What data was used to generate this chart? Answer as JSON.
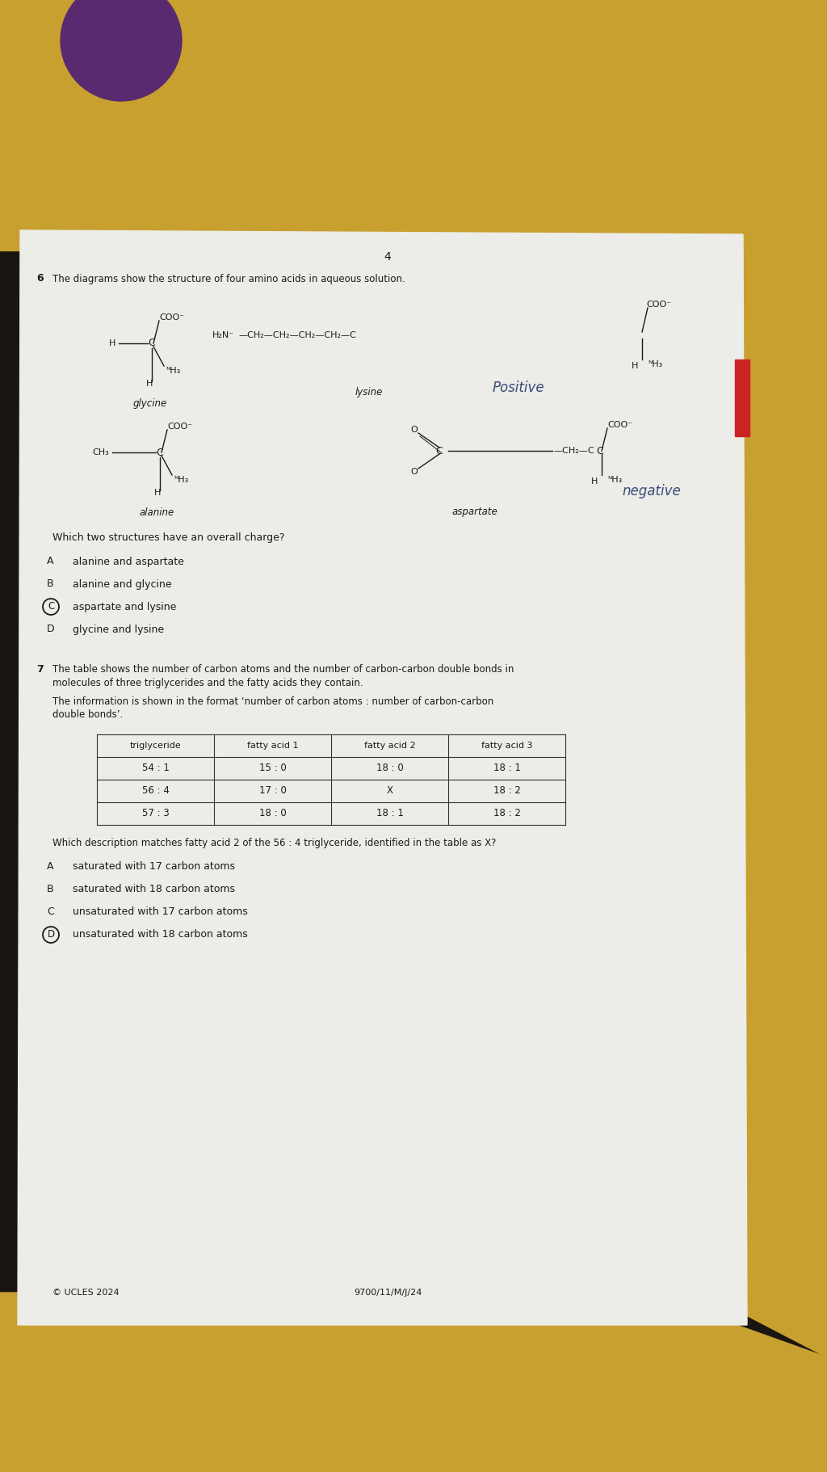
{
  "page_number": "4",
  "q6_intro": "The diagrams show the structure of four amino acids in aqueous solution.",
  "q6_question": "Which two structures have an overall charge?",
  "q6_options": [
    {
      "letter": "A",
      "text": "alanine and aspartate",
      "circled": false
    },
    {
      "letter": "B",
      "text": "alanine and glycine",
      "circled": false
    },
    {
      "letter": "C",
      "text": "aspartate and lysine",
      "circled": true
    },
    {
      "letter": "D",
      "text": "glycine and lysine",
      "circled": false
    }
  ],
  "q7_intro1": "The table shows the number of carbon atoms and the number of carbon-carbon double bonds in",
  "q7_intro2": "molecules of three triglycerides and the fatty acids they contain.",
  "q7_format1": "The information is shown in the format ‘number of carbon atoms : number of carbon-carbon",
  "q7_format2": "double bonds’.",
  "table_headers": [
    "triglyceride",
    "fatty acid 1",
    "fatty acid 2",
    "fatty acid 3"
  ],
  "table_rows": [
    [
      "54 : 1",
      "15 : 0",
      "18 : 0",
      "18 : 1"
    ],
    [
      "56 : 4",
      "17 : 0",
      "X",
      "18 : 2"
    ],
    [
      "57 : 3",
      "18 : 0",
      "18 : 1",
      "18 : 2"
    ]
  ],
  "q7_question": "Which description matches fatty acid 2 of the 56 : 4 triglyceride, identified in the table as X?",
  "q7_options": [
    {
      "letter": "A",
      "text": "saturated with 17 carbon atoms",
      "circled": false
    },
    {
      "letter": "B",
      "text": "saturated with 18 carbon atoms",
      "circled": false
    },
    {
      "letter": "C",
      "text": "unsaturated with 17 carbon atoms",
      "circled": false
    },
    {
      "letter": "D",
      "text": "unsaturated with 18 carbon atoms",
      "circled": true
    }
  ],
  "footer_left": "© UCLES 2024",
  "footer_center": "9700/11/M/J/24",
  "dark_bg": "#1a1510",
  "tan_color": "#c8a030",
  "paper_color": "#ececE8",
  "text_color": "#1a1a1a",
  "handwritten_color": "#3a4a7a",
  "table_border": "#555555"
}
